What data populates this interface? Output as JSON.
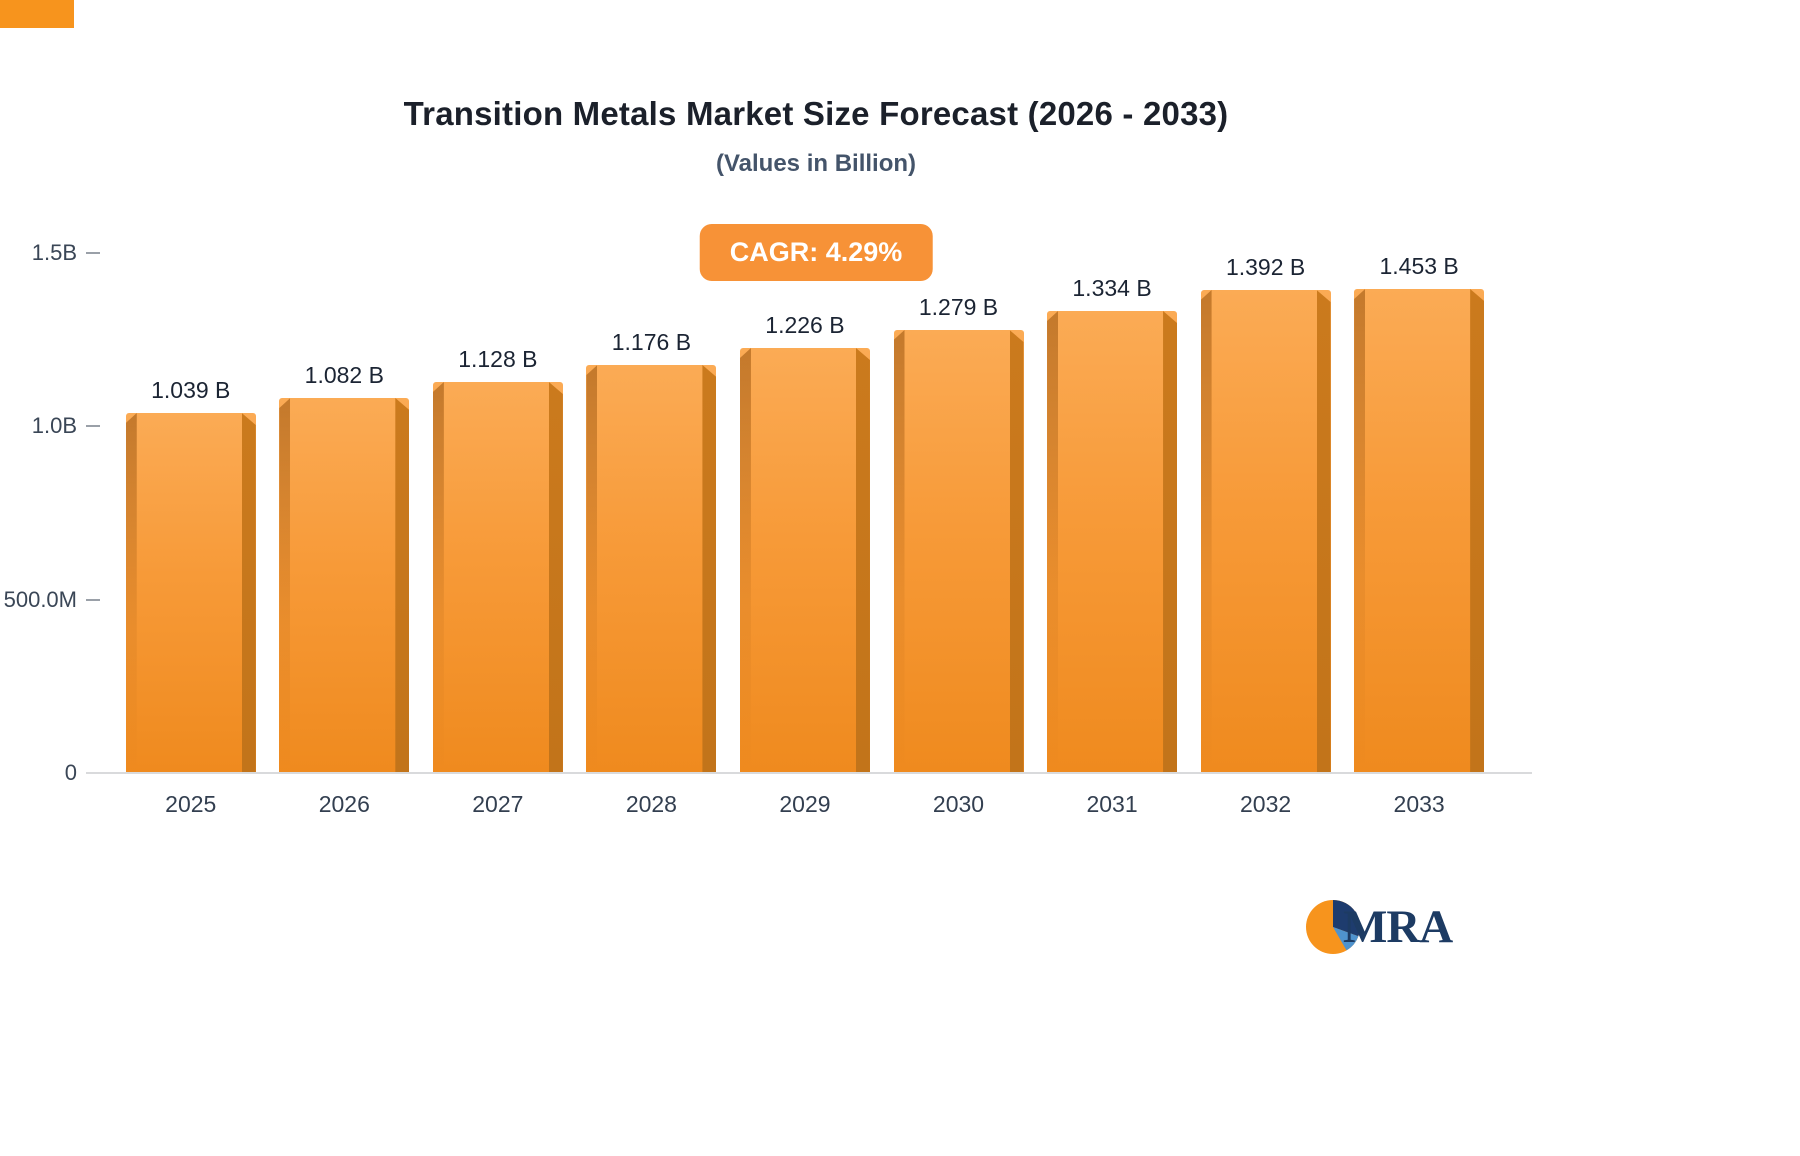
{
  "chart_data": {
    "type": "bar",
    "title": "Transition Metals Market Size Forecast (2026 - 2033)",
    "subtitle": "(Values in Billion)",
    "cagr_label": "CAGR: 4.29%",
    "categories": [
      "2025",
      "2026",
      "2027",
      "2028",
      "2029",
      "2030",
      "2031",
      "2032",
      "2033"
    ],
    "values": [
      1.039,
      1.082,
      1.128,
      1.176,
      1.226,
      1.279,
      1.334,
      1.392,
      1.453
    ],
    "value_labels": [
      "1.039 B",
      "1.082 B",
      "1.128 B",
      "1.176 B",
      "1.226 B",
      "1.279 B",
      "1.334 B",
      "1.392 B",
      "1.453 B"
    ],
    "unit": "Billion",
    "xlabel": "",
    "ylabel": "",
    "ylim": [
      0,
      1.5
    ],
    "y_ticks": [
      {
        "label": "1.5B",
        "value": 1.5
      },
      {
        "label": "1.0B",
        "value": 1.0
      },
      {
        "label": "500.0M",
        "value": 0.5
      },
      {
        "label": "0",
        "value": 0
      }
    ],
    "grid": false,
    "legend": null,
    "colors": {
      "bar_top": "#fbab55",
      "bar_bottom": "#ef8a1e",
      "bar_side": "#cb7a1d",
      "badge_bg": "#f79237",
      "accent": "#f7941d"
    }
  },
  "branding": {
    "logo_text": "MRA",
    "logo_colors": {
      "orange": "#f7941d",
      "dark_blue": "#1e3c6e",
      "light_blue": "#4f93ce",
      "text": "#1d3b63"
    }
  }
}
